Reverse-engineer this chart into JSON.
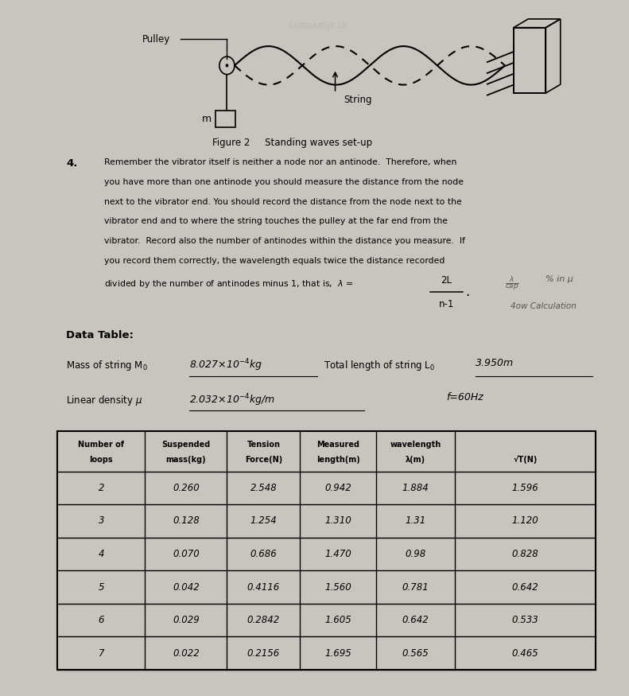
{
  "bg_color": "#c8c4be",
  "page_color": "#dedad4",
  "title_experiment": "EXPERIMENT 10",
  "pulley_label": "Pulley",
  "string_label": "String",
  "figure_caption": "Figure 2    Standing waves set-up",
  "section_number": "4.",
  "paragraph_lines": [
    "Remember the vibrator itself is neither a node nor an antinode.  Therefore, when",
    "you have more than one antinode you should measure the distance from the node",
    "next to the vibrator end. You should record the distance from the node next to the",
    "vibrator end and to where the string touches the pulley at the far end from the",
    "vibrator.  Record also the number of antinodes within the distance you measure.  If",
    "you record them correctly, the wavelength equals twice the distance recorded"
  ],
  "lambda_line": "divided by the number of antinodes minus 1, that is,  λ = ",
  "data_table_label": "Data Table:",
  "mass_label": "Mass of string M",
  "mass_value": "8.027×10",
  "mass_exp": "-4",
  "mass_unit": " kg",
  "length_label": "Total length of string L",
  "length_value": "3.950m",
  "density_label": "Linear density μ",
  "density_value": "2.032×10",
  "density_exp": "-4",
  "density_unit": " kg/m",
  "freq_value": "f=60Hz",
  "table_headers_line1": [
    "Number of",
    "Suspended",
    "Tension",
    "Measured",
    "wavelength",
    ""
  ],
  "table_headers_line2": [
    "loops",
    "mass(kg)",
    "Force(N)",
    "length(m)",
    "λ(m)",
    "√T(N)"
  ],
  "table_data": [
    [
      "2",
      "0.260",
      "2.548",
      "0.942",
      "1.884",
      "1.596"
    ],
    [
      "3",
      "0.128",
      "1.254",
      "1.310",
      "1.31",
      "1.120"
    ],
    [
      "4",
      "0.070",
      "0.686",
      "1.470",
      "0.98",
      "0.828"
    ],
    [
      "5",
      "0.042",
      "0.4116",
      "1.560",
      "0.781",
      "0.642"
    ],
    [
      "6",
      "0.029",
      "0.2842",
      "1.605",
      "0.642",
      "0.533"
    ],
    [
      "7",
      "0.022",
      "0.2156",
      "1.695",
      "0.565",
      "0.465"
    ]
  ],
  "handwritten_note1": "% in μ",
  "handwritten_note2": "4ow Calculation"
}
